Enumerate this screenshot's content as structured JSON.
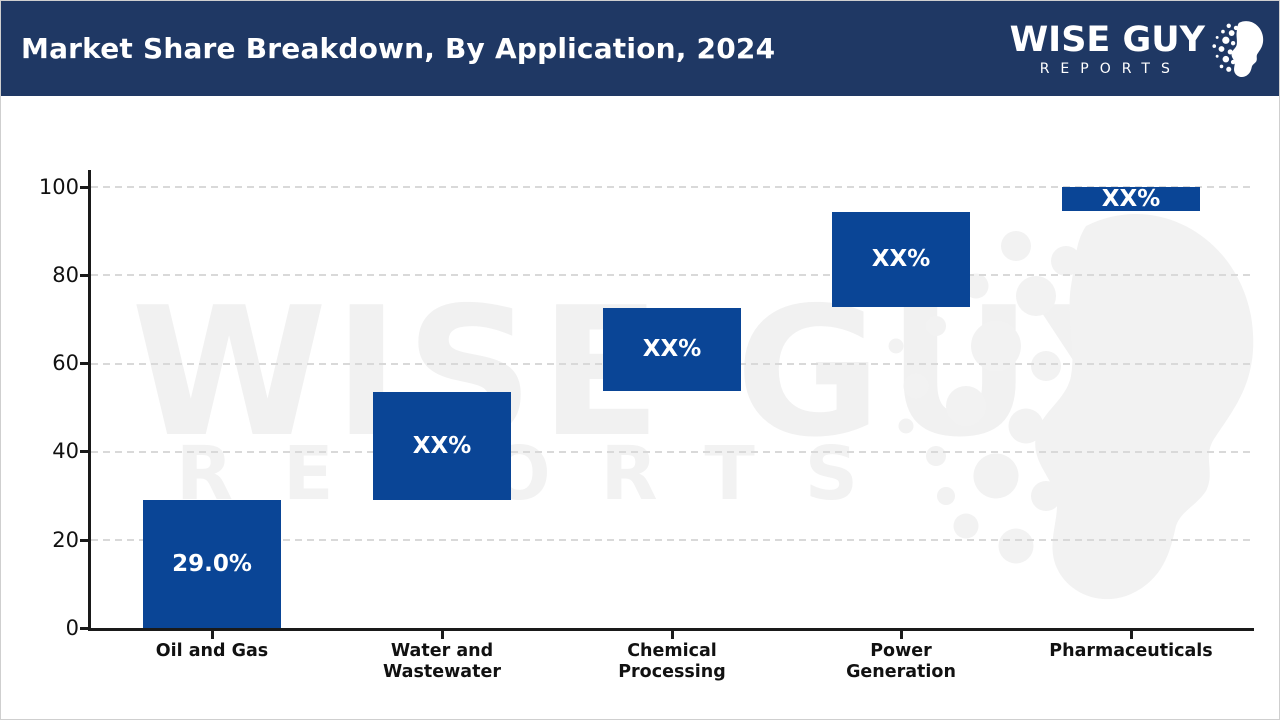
{
  "header": {
    "title": "Market Share Breakdown, By Application, 2024",
    "logo": {
      "line1": "WISE GUY",
      "line2": "REPORTS",
      "head_icon": "dotted-face-profile"
    }
  },
  "watermark": {
    "line1": "WISE GUY",
    "line2": "REPORTS"
  },
  "chart_data": {
    "type": "bar",
    "variant": "floating-waterfall",
    "title": "Market Share Breakdown, By Application, 2024",
    "categories": [
      "Oil and Gas",
      "Water and Wastewater",
      "Chemical Processing",
      "Power Generation",
      "Pharmaceuticals"
    ],
    "segments": [
      {
        "category": "Oil and Gas",
        "start": 0,
        "end": 29.0,
        "label": "29.0%"
      },
      {
        "category": "Water and Wastewater",
        "start": 29.0,
        "end": 53.5,
        "label": "XX%"
      },
      {
        "category": "Chemical Processing",
        "start": 53.9,
        "end": 72.6,
        "label": "XX%"
      },
      {
        "category": "Power Generation",
        "start": 72.9,
        "end": 94.4,
        "label": "XX%"
      },
      {
        "category": "Pharmaceuticals",
        "start": 94.6,
        "end": 100.1,
        "label": "XX%"
      }
    ],
    "yticks": [
      0,
      20,
      40,
      60,
      80,
      100
    ],
    "ylim": [
      0,
      103.5
    ],
    "xlabel": "",
    "ylabel": "",
    "grid": "horizontal-dashed",
    "legend": null,
    "bar_color": "#0a4596"
  },
  "colors": {
    "header_bg": "#1f3864",
    "bar_fill": "#0a4596",
    "grid_line": "#d9d9d9",
    "axis": "#1a1a1a",
    "watermark": "#f1f1f1",
    "page_border": "#cfcfcf",
    "text_on_dark": "#ffffff"
  }
}
